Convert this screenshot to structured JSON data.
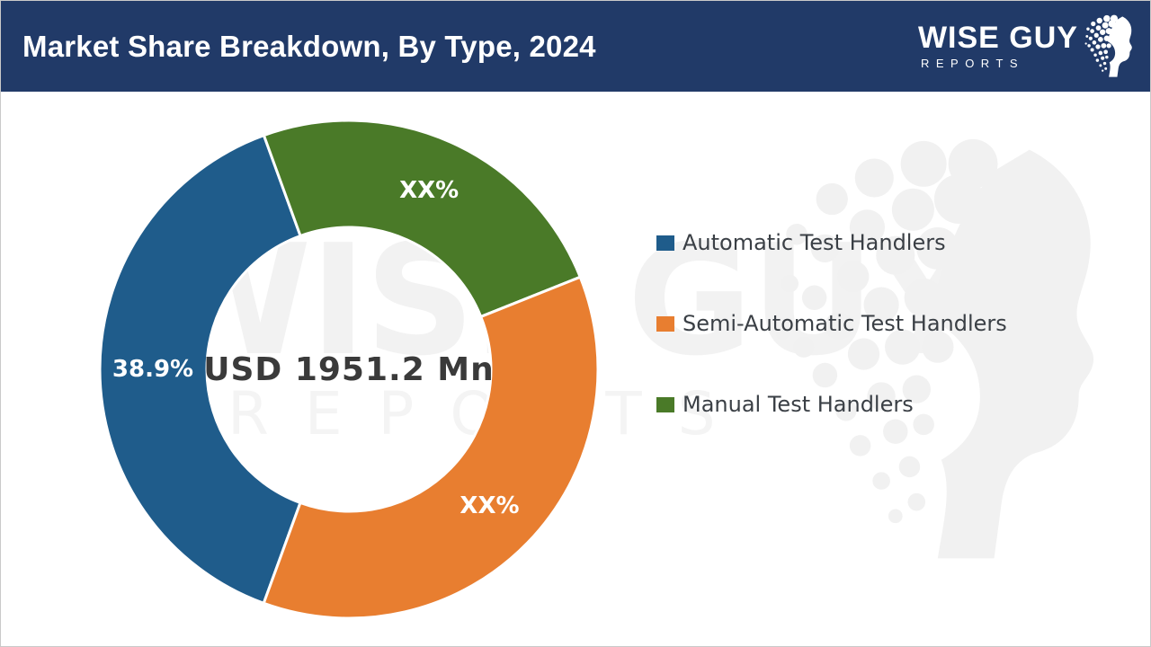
{
  "header": {
    "title": "Market Share Breakdown, By Type, 2024",
    "bg_color": "#213a68",
    "logo": {
      "line1": "WISE GUY",
      "line2": "REPORTS"
    }
  },
  "watermark": {
    "line1": "WISE GUY",
    "line2": "REPORTS"
  },
  "chart_data": {
    "type": "pie",
    "subtype": "donut",
    "title": "Market Share Breakdown, By Type, 2024",
    "center_label": "USD 1951.2 Mn",
    "start_angle_deg": 200,
    "direction": "clockwise",
    "values_estimated_from_arcs": true,
    "series": [
      {
        "name": "Automatic Test Handlers",
        "value_pct": 38.9,
        "display_label": "38.9%",
        "color": "#1f5c8b"
      },
      {
        "name": "Manual Test Handlers",
        "value_pct": 24.5,
        "display_label": "XX%",
        "color": "#4a7a28"
      },
      {
        "name": "Semi-Automatic Test Handlers",
        "value_pct": 36.6,
        "display_label": "XX%",
        "color": "#e87e30"
      }
    ],
    "legend_position": "right",
    "legend_order": [
      "Automatic Test Handlers",
      "Semi-Automatic Test Handlers",
      "Manual Test Handlers"
    ]
  }
}
